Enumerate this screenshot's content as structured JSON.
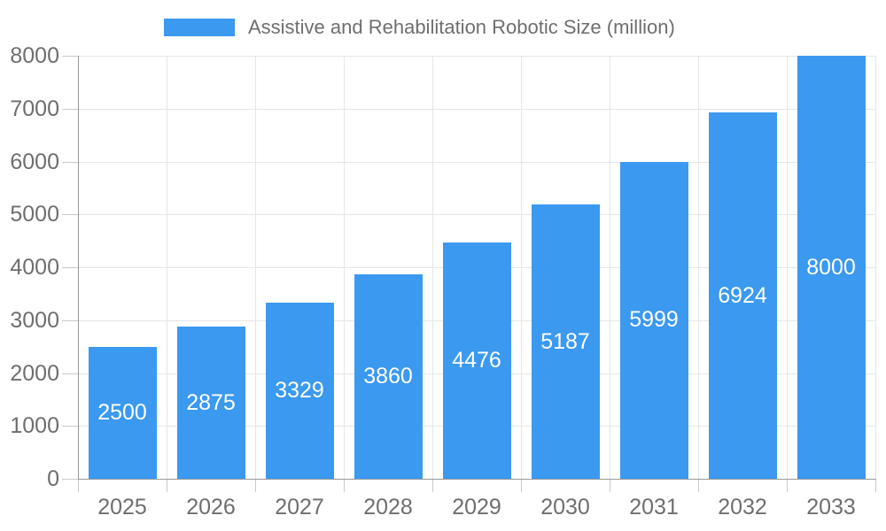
{
  "chart_data": {
    "type": "bar",
    "title": "Assistive and Rehabilitation Robotic Size (million)",
    "series_name": "Assistive and Rehabilitation Robotic Size (million)",
    "categories": [
      "2025",
      "2026",
      "2027",
      "2028",
      "2029",
      "2030",
      "2031",
      "2032",
      "2033"
    ],
    "values": [
      2500,
      2875,
      3329,
      3860,
      4476,
      5187,
      5999,
      6924,
      8000
    ],
    "bar_labels": [
      2500,
      2875,
      3329,
      3860,
      4476,
      5187,
      5999,
      6924,
      8000
    ],
    "xlabel": "",
    "ylabel": "",
    "ylim": [
      0,
      8000
    ],
    "yticks": [
      0,
      1000,
      2000,
      3000,
      4000,
      5000,
      6000,
      7000,
      8000
    ],
    "grid": "on",
    "legend_position": "top-center"
  },
  "colors": {
    "bar": "#3B99F0",
    "bar_label_text": "#FFFFFF",
    "axis_text": "#6E6E6E",
    "legend_text": "#6E6E6E",
    "grid_line": "#E6E6E6",
    "tick_line": "#C9C9C9",
    "axis_line": "#9A9A9A",
    "background": "#FFFFFF"
  }
}
